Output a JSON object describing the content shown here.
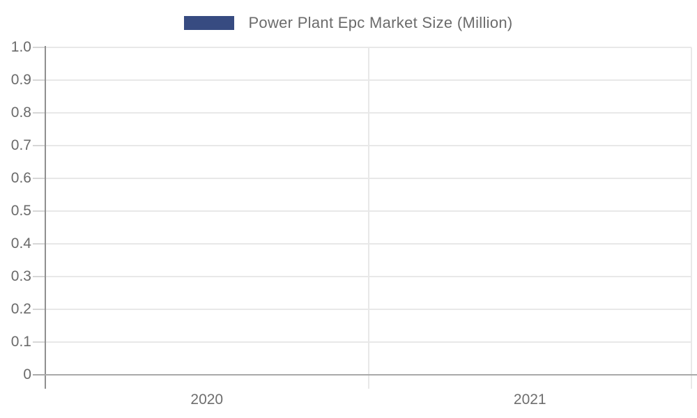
{
  "legend": {
    "series_label": "Power Plant Epc Market Size (Million)"
  },
  "chart_data": {
    "type": "bar",
    "title": "Power Plant Epc Market Size (Million)",
    "categories": [
      "2020",
      "2021"
    ],
    "series": [
      {
        "name": "Power Plant Epc Market Size (Million)",
        "color": "#374B81",
        "values": [
          null,
          null
        ]
      }
    ],
    "xlabel": "",
    "ylabel": "",
    "ylim": [
      0,
      1.0
    ],
    "y_ticks": [
      "1.0",
      "0.9",
      "0.8",
      "0.7",
      "0.6",
      "0.5",
      "0.4",
      "0.3",
      "0.2",
      "0.1",
      "0"
    ],
    "grid": true,
    "legend_position": "top-center"
  },
  "colors": {
    "series": "#374B81",
    "gridline": "#E8E8E8",
    "axis_tick": "#D6D6D6",
    "y_axis_line": "#8F8F8F",
    "x_axis_line": "#A9A9A9",
    "label_text": "#6A6A6A",
    "background": "#FFFFFF"
  }
}
